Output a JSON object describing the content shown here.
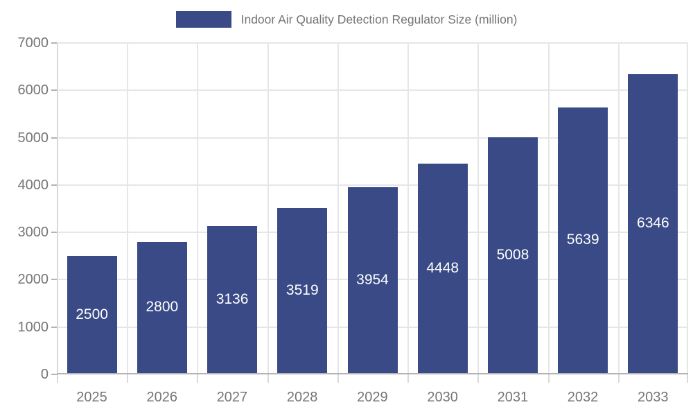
{
  "legend": {
    "label": "Indoor Air Quality Detection Regulator Size (million)"
  },
  "chart_data": {
    "type": "bar",
    "title": "Indoor Air Quality Detection Regulator Size (million)",
    "categories": [
      "2025",
      "2026",
      "2027",
      "2028",
      "2029",
      "2030",
      "2031",
      "2032",
      "2033"
    ],
    "values": [
      2500,
      2800,
      3136,
      3519,
      3954,
      4448,
      5008,
      5639,
      6346
    ],
    "xlabel": "",
    "ylabel": "",
    "ylim": [
      0,
      7000
    ],
    "yticks": [
      0,
      1000,
      2000,
      3000,
      4000,
      5000,
      6000,
      7000
    ],
    "grid": "on",
    "legend_position": "top",
    "bar_color": "#394A87",
    "value_label_color": "#ffffff",
    "axis_text_color": "#757575",
    "grid_color": "#e6e6e6",
    "axis_line_color": "#b3b3b3"
  }
}
